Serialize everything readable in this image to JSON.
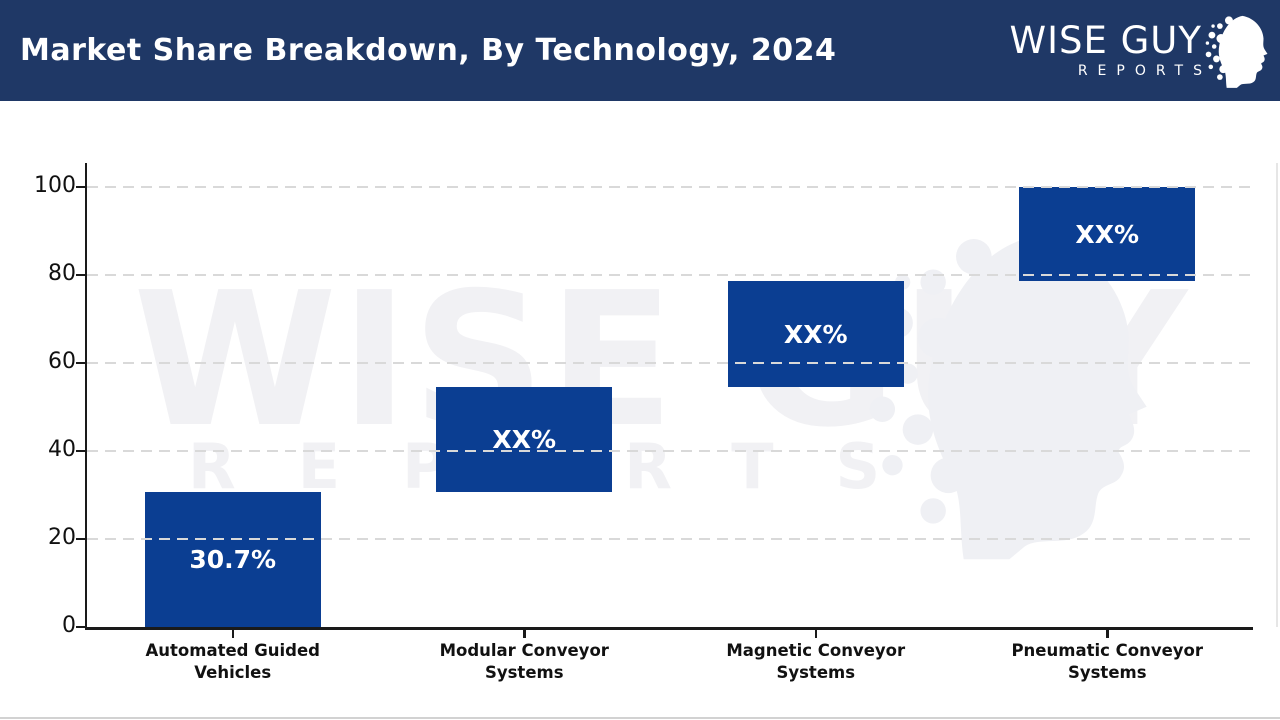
{
  "header": {
    "title": "Market Share Breakdown, By Technology, 2024",
    "logo": {
      "wordmark": "WISE GUY",
      "subtext": "REPORTS"
    }
  },
  "watermark": {
    "wordmark": "WISE GUY",
    "subtext": "REPORTS"
  },
  "chart_data": {
    "type": "bar",
    "variant": "waterfall",
    "title": "Market Share Breakdown, By Technology, 2024",
    "categories": [
      "Automated Guided Vehicles",
      "Modular Conveyor Systems",
      "Magnetic Conveyor Systems",
      "Pneumatic Conveyor Systems"
    ],
    "category_lines": [
      [
        "Automated Guided",
        "Vehicles"
      ],
      [
        "Modular Conveyor",
        "Systems"
      ],
      [
        "Magnetic Conveyor",
        "Systems"
      ],
      [
        "Pneumatic Conveyor",
        "Systems"
      ]
    ],
    "segments": [
      {
        "category": "Automated Guided Vehicles",
        "start": 0,
        "end": 30.7,
        "label": "30.7%"
      },
      {
        "category": "Modular Conveyor Systems",
        "start": 30.7,
        "end": 54.5,
        "label": "XX%"
      },
      {
        "category": "Magnetic Conveyor Systems",
        "start": 54.5,
        "end": 78.6,
        "label": "XX%"
      },
      {
        "category": "Pneumatic Conveyor Systems",
        "start": 78.6,
        "end": 100,
        "label": "XX%"
      }
    ],
    "ylim": [
      0,
      100
    ],
    "yticks": [
      0,
      20,
      40,
      60,
      80,
      100
    ],
    "grid": {
      "horizontal": true,
      "style": "dashed",
      "above_bars": true
    },
    "colors": {
      "bar": "#0B3E92",
      "bar_label": "#FFFFFF",
      "grid": "#D9D9D9",
      "axis": "#1A1A1A"
    }
  },
  "colors": {
    "header_bg": "#1F3866",
    "page_bg": "#FFFFFF",
    "watermark": "#F1F1F4"
  }
}
